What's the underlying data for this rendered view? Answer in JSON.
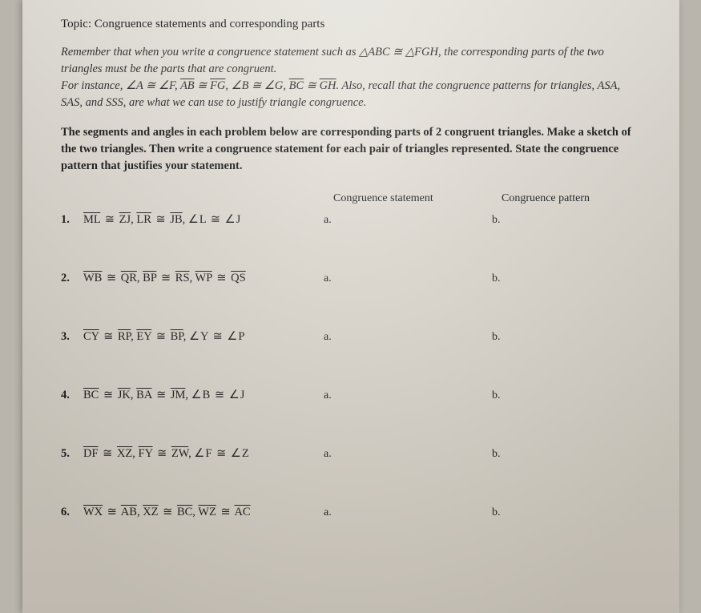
{
  "topic_label": "Topic:",
  "topic_text": "Congruence statements and corresponding parts",
  "intro_html": "Remember that when you write a congruence statement such as <span class=\"nw\">△ABC ≅ △FGH</span>, the corresponding parts of the two triangles must be the parts that are congruent.<br>For instance, <span class=\"nw\">∠A ≅ ∠F</span>, <span class=\"ov\">AB</span> ≅ <span class=\"ov\">FG</span>, <span class=\"nw\">∠B ≅ ∠G</span>, <span class=\"ov\">BC</span> ≅ <span class=\"ov\">GH</span>. Also, recall that the congruence patterns for triangles, ASA, SAS, and SSS, are what we can use to justify triangle congruence.",
  "instructions": "The segments and angles in each problem below are corresponding parts of 2 congruent triangles. Make a sketch of the two triangles.  Then write a congruence statement for each pair of triangles represented.  State the congruence pattern that justifies your statement.",
  "header_a": "Congruence statement",
  "header_b": "Congruence pattern",
  "label_a": "a.",
  "label_b": "b.",
  "problems": [
    {
      "num": "1.",
      "given_html": "<span class=\"ov\">ML</span> <span class=\"cong\">≅</span> <span class=\"ov\">ZJ</span>, <span class=\"ov\">LR</span> <span class=\"cong\">≅</span> <span class=\"ov\">JB</span>, <span class=\"ang\">∠</span>L <span class=\"cong\">≅</span> <span class=\"ang\">∠</span>J"
    },
    {
      "num": "2.",
      "given_html": "<span class=\"ov\">WB</span> <span class=\"cong\">≅</span> <span class=\"ov\">QR</span>, <span class=\"ov\">BP</span> <span class=\"cong\">≅</span> <span class=\"ov\">RS</span>, <span class=\"ov\">WP</span> <span class=\"cong\">≅</span> <span class=\"ov\">QS</span>"
    },
    {
      "num": "3.",
      "given_html": "<span class=\"ov\">CY</span> <span class=\"cong\">≅</span> <span class=\"ov\">RP</span>, <span class=\"ov\">EY</span> <span class=\"cong\">≅</span> <span class=\"ov\">BP</span>, <span class=\"ang\">∠</span>Y <span class=\"cong\">≅</span> <span class=\"ang\">∠</span>P"
    },
    {
      "num": "4.",
      "given_html": "<span class=\"ov\">BC</span> <span class=\"cong\">≅</span> <span class=\"ov\">JK</span>, <span class=\"ov\">BA</span> <span class=\"cong\">≅</span> <span class=\"ov\">JM</span>, <span class=\"ang\">∠</span>B <span class=\"cong\">≅</span> <span class=\"ang\">∠</span>J"
    },
    {
      "num": "5.",
      "given_html": "<span class=\"ov\">DF</span> <span class=\"cong\">≅</span> <span class=\"ov\">XZ</span>, <span class=\"ov\">FY</span> <span class=\"cong\">≅</span> <span class=\"ov\">ZW</span>, <span class=\"ang\">∠</span>F <span class=\"cong\">≅</span> <span class=\"ang\">∠</span>Z"
    },
    {
      "num": "6.",
      "given_html": "<span class=\"ov\">WX</span> <span class=\"cong\">≅</span> <span class=\"ov\">AB</span>, <span class=\"ov\">XZ</span> <span class=\"cong\">≅</span> <span class=\"ov\">BC</span>, <span class=\"ov\">WZ</span> <span class=\"cong\">≅</span> <span class=\"ov\">AC</span>"
    }
  ]
}
